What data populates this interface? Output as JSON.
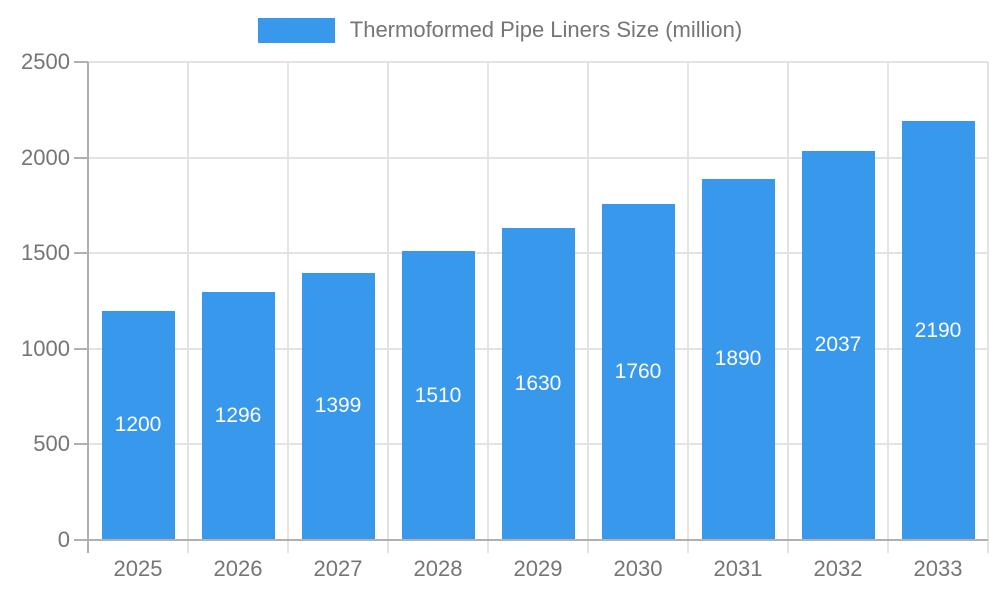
{
  "legend": {
    "label": "Thermoformed Pipe Liners Size (million)"
  },
  "chart_data": {
    "type": "bar",
    "title": "Thermoformed Pipe Liners Size (million)",
    "categories": [
      "2025",
      "2026",
      "2027",
      "2028",
      "2029",
      "2030",
      "2031",
      "2032",
      "2033"
    ],
    "series": [
      {
        "name": "Thermoformed Pipe Liners Size (million)",
        "values": [
          1200,
          1296,
          1399,
          1510,
          1630,
          1760,
          1890,
          2037,
          2190
        ]
      }
    ],
    "xlabel": "",
    "ylabel": "",
    "ylim": [
      0,
      2500
    ],
    "yticks": [
      0,
      500,
      1000,
      1500,
      2000,
      2500
    ],
    "grid": true,
    "legend_position": "top",
    "bar_labels_shown": true
  },
  "colors": {
    "bar": "#3898EC",
    "bar_label": "#FFFFFF",
    "text": "#757575",
    "gridline": "#E3E3E3",
    "axis_line": "#B0B0B0",
    "background": "#FFFFFF"
  }
}
